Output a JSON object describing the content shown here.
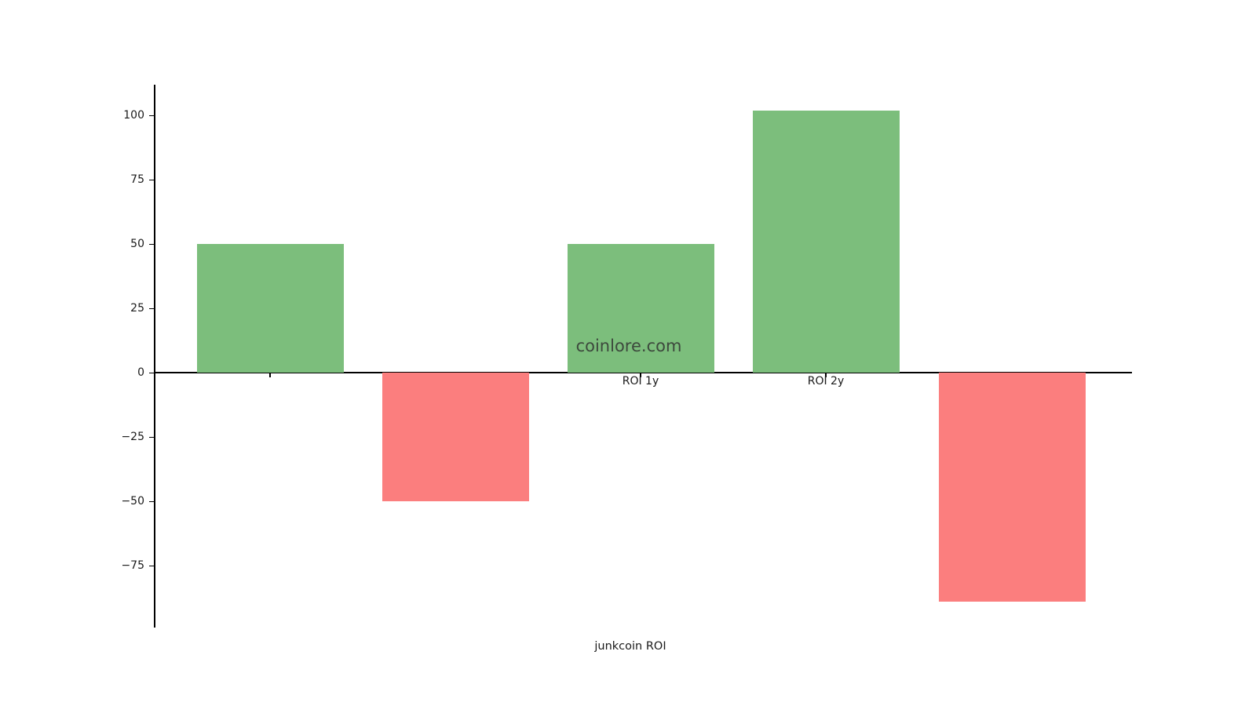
{
  "page": {
    "background_color": "#ffffff"
  },
  "watermark": "coinlore.com",
  "chart_data": {
    "type": "bar",
    "title": "",
    "xlabel": "junkcoin ROI",
    "ylabel": "",
    "categories": [
      "",
      "",
      "ROI 1y",
      "ROI 2y",
      ""
    ],
    "values": [
      50,
      -50,
      50,
      102,
      -89
    ],
    "series": [
      {
        "name": "junkcoin ROI %",
        "values": [
          50,
          -50,
          50,
          102,
          -89
        ]
      }
    ],
    "bar_colors": [
      "#7cbe7c",
      "#fb7e7e",
      "#7cbe7c",
      "#7cbe7c",
      "#fb7e7e"
    ],
    "positive_color": "#7cbe7c",
    "negative_color": "#fb7e7e",
    "yticks": [
      100,
      75,
      50,
      25,
      0,
      -25,
      -50,
      -75
    ],
    "ytick_labels": [
      "100",
      "75",
      "50",
      "25",
      "0",
      "−25",
      "−50",
      "−75"
    ],
    "ylim": [
      -99,
      112
    ],
    "grid": false,
    "legend_position": "none",
    "watermark": "coinlore.com"
  }
}
